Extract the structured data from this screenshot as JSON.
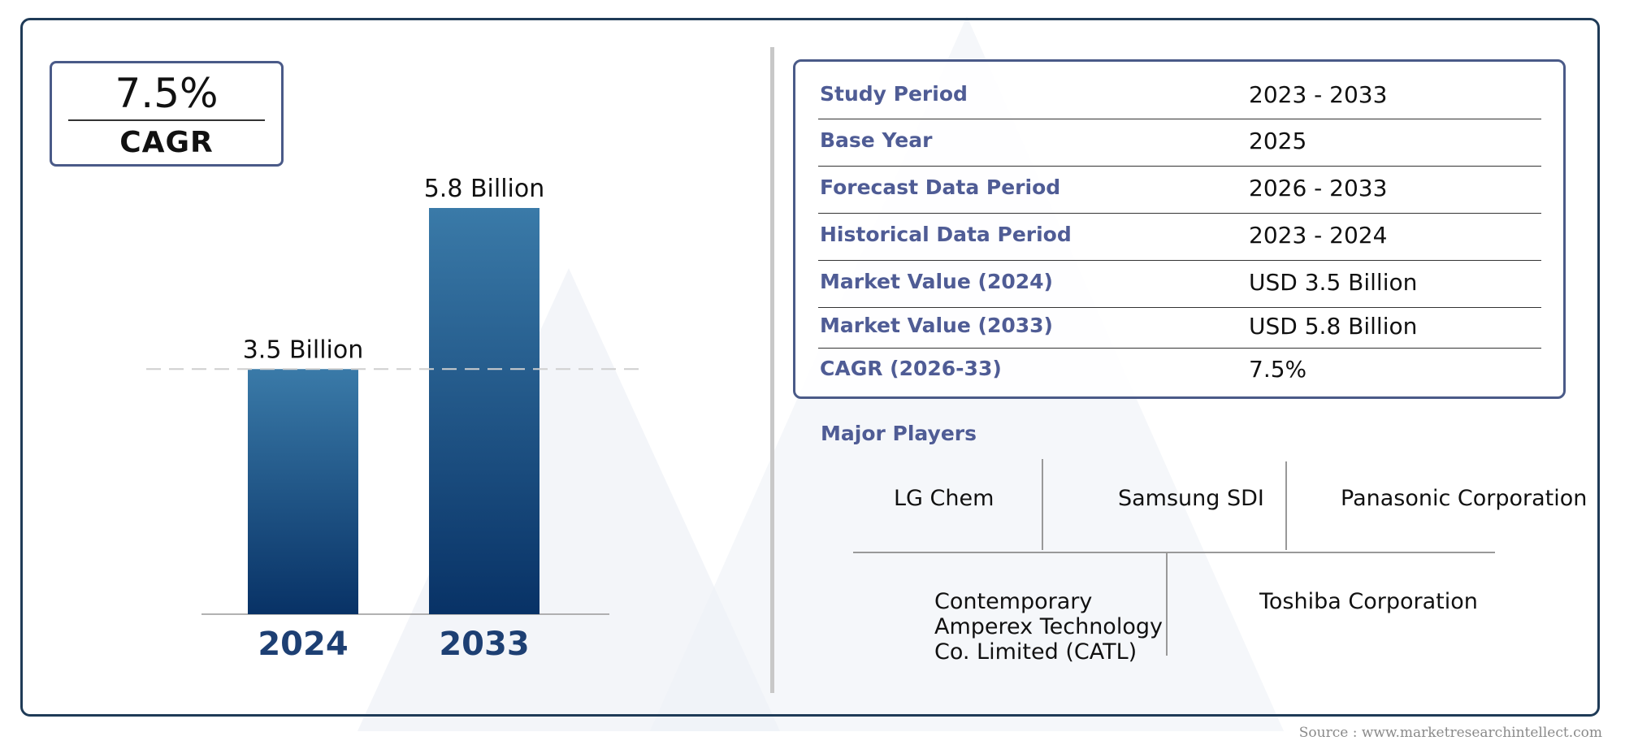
{
  "cagr_box": {
    "value": "7.5%",
    "label": "CAGR"
  },
  "chart_data": {
    "type": "bar",
    "categories": [
      "2024",
      "2033"
    ],
    "values": [
      3.5,
      5.8
    ],
    "value_labels": [
      "3.5 Billion",
      "5.8 Billion"
    ],
    "title": "",
    "xlabel": "",
    "ylabel": "",
    "ylim": [
      0,
      5.8
    ],
    "grid": false,
    "reference_line": "dashed line at 2024 value",
    "bar_gradient": [
      "#3a7aa8",
      "#083266"
    ],
    "category_label_color": "#1d3f73"
  },
  "info_table": {
    "rows": [
      {
        "key": "Study Period",
        "value": "2023 - 2033"
      },
      {
        "key": "Base Year",
        "value": "2025"
      },
      {
        "key": "Forecast Data Period",
        "value": "2026 - 2033"
      },
      {
        "key": "Historical Data Period",
        "value": "2023 - 2024"
      },
      {
        "key": "Market Value (2024)",
        "value": "USD 3.5 Billion"
      },
      {
        "key": "Market Value (2033)",
        "value": "USD 5.8 Billion"
      },
      {
        "key": "CAGR (2026-33)",
        "value": "7.5%"
      }
    ]
  },
  "players": {
    "heading": "Major Players",
    "list": [
      "LG Chem",
      "Samsung SDI",
      "Panasonic Corporation",
      "Contemporary Amperex Technology Co. Limited (CATL)",
      "Toshiba Corporation"
    ]
  },
  "source": "Source : www.marketresearchintellect.com",
  "colors": {
    "accent": "#4f5c95",
    "frame": "#1f3b57"
  }
}
